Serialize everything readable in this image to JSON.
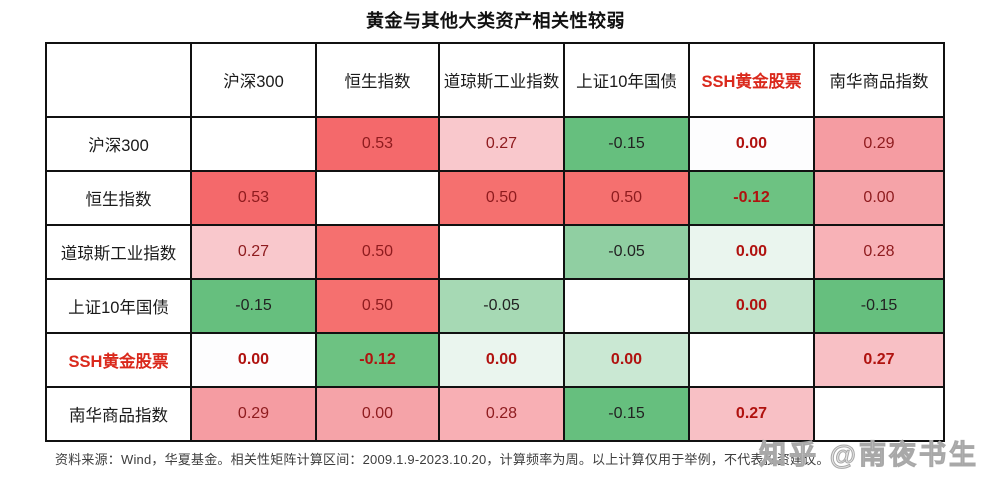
{
  "title": "黄金与其他大类资产相关性较弱",
  "source_note": "资料来源：Wind，华夏基金。相关性矩阵计算区间：2009.1.9-2023.10.20，计算频率为周。以上计算仅用于举例，不代表投资建议。",
  "watermark": "知乎 @南夜书生",
  "colors": {
    "border": "#111111",
    "header_highlight_red": "#DA291C",
    "value_positive_text": "#8E1B1E",
    "value_negative_text": "#222222",
    "value_gold_bold_text": "#B0120F",
    "strong_red_bg": "#F4696B",
    "strong_green_bg": "#66BF7E"
  },
  "chart_data": {
    "type": "heatmap",
    "title": "黄金与其他大类资产相关性较弱",
    "categories": [
      "沪深300",
      "恒生指数",
      "道琼斯工业指数",
      "上证10年国债",
      "SSH黄金股票",
      "南华商品指数"
    ],
    "highlight_category": "SSH黄金股票",
    "matrix": [
      [
        null,
        0.53,
        0.27,
        -0.15,
        0.0,
        0.29
      ],
      [
        0.53,
        null,
        0.5,
        0.5,
        -0.12,
        0.0
      ],
      [
        0.27,
        0.5,
        null,
        -0.05,
        0.0,
        0.28
      ],
      [
        -0.15,
        0.5,
        -0.05,
        null,
        0.0,
        -0.15
      ],
      [
        0.0,
        -0.12,
        0.0,
        0.0,
        null,
        0.27
      ],
      [
        0.29,
        0.0,
        0.28,
        -0.15,
        0.27,
        null
      ]
    ],
    "color_scale": "red=positive correlation, green=negative correlation, white=zero",
    "legend_position": "none",
    "grid": true
  },
  "table": {
    "corner_label": "",
    "col_headers": [
      {
        "label": "沪深300",
        "highlight": false
      },
      {
        "label": "恒生指数",
        "highlight": false
      },
      {
        "label": "道琼斯工业指数",
        "highlight": false
      },
      {
        "label": "上证10年国债",
        "highlight": false
      },
      {
        "label": "SSH黄金股票",
        "highlight": true
      },
      {
        "label": "南华商品指数",
        "highlight": false
      }
    ],
    "rows": [
      {
        "label": "沪深300",
        "highlight": false,
        "cells": [
          {
            "text": "",
            "bg": "#FFFFFF",
            "color": "#222222",
            "bold": false
          },
          {
            "text": "0.53",
            "bg": "#F4696B",
            "color": "#8E1B1E",
            "bold": false
          },
          {
            "text": "0.27",
            "bg": "#F9C8CC",
            "color": "#8E1B1E",
            "bold": false
          },
          {
            "text": "-0.15",
            "bg": "#66BF7E",
            "color": "#222222",
            "bold": false
          },
          {
            "text": "0.00",
            "bg": "#FDFDFE",
            "color": "#B0120F",
            "bold": true
          },
          {
            "text": "0.29",
            "bg": "#F59CA2",
            "color": "#8E1B1E",
            "bold": false
          }
        ]
      },
      {
        "label": "恒生指数",
        "highlight": false,
        "cells": [
          {
            "text": "0.53",
            "bg": "#F4696B",
            "color": "#8E1B1E",
            "bold": false
          },
          {
            "text": "",
            "bg": "#FFFFFF",
            "color": "#222222",
            "bold": false
          },
          {
            "text": "0.50",
            "bg": "#F5706F",
            "color": "#8E1B1E",
            "bold": false
          },
          {
            "text": "0.50",
            "bg": "#F5706F",
            "color": "#8E1B1E",
            "bold": false
          },
          {
            "text": "-0.12",
            "bg": "#6DC282",
            "color": "#B0120F",
            "bold": true
          },
          {
            "text": "0.00",
            "bg": "#F5A3A8",
            "color": "#8E1B1E",
            "bold": false
          }
        ]
      },
      {
        "label": "道琼斯工业指数",
        "highlight": false,
        "cells": [
          {
            "text": "0.27",
            "bg": "#F9C8CC",
            "color": "#8E1B1E",
            "bold": false
          },
          {
            "text": "0.50",
            "bg": "#F5706F",
            "color": "#8E1B1E",
            "bold": false
          },
          {
            "text": "",
            "bg": "#FFFFFF",
            "color": "#222222",
            "bold": false
          },
          {
            "text": "-0.05",
            "bg": "#90CFA2",
            "color": "#222222",
            "bold": false
          },
          {
            "text": "0.00",
            "bg": "#EAF5EE",
            "color": "#B0120F",
            "bold": true
          },
          {
            "text": "0.28",
            "bg": "#F8B2B7",
            "color": "#8E1B1E",
            "bold": false
          }
        ]
      },
      {
        "label": "上证10年国债",
        "highlight": false,
        "cells": [
          {
            "text": "-0.15",
            "bg": "#66BF7E",
            "color": "#222222",
            "bold": false
          },
          {
            "text": "0.50",
            "bg": "#F5706F",
            "color": "#8E1B1E",
            "bold": false
          },
          {
            "text": "-0.05",
            "bg": "#A6D9B4",
            "color": "#222222",
            "bold": false
          },
          {
            "text": "",
            "bg": "#FFFFFF",
            "color": "#222222",
            "bold": false
          },
          {
            "text": "0.00",
            "bg": "#C2E4CC",
            "color": "#B0120F",
            "bold": true
          },
          {
            "text": "-0.15",
            "bg": "#66BF7E",
            "color": "#222222",
            "bold": false
          }
        ]
      },
      {
        "label": "SSH黄金股票",
        "highlight": true,
        "cells": [
          {
            "text": "0.00",
            "bg": "#FDFDFE",
            "color": "#B0120F",
            "bold": true
          },
          {
            "text": "-0.12",
            "bg": "#6DC282",
            "color": "#B0120F",
            "bold": true
          },
          {
            "text": "0.00",
            "bg": "#EAF5EE",
            "color": "#B0120F",
            "bold": true
          },
          {
            "text": "0.00",
            "bg": "#CAE8D3",
            "color": "#B0120F",
            "bold": true
          },
          {
            "text": "",
            "bg": "#FFFFFF",
            "color": "#222222",
            "bold": false
          },
          {
            "text": "0.27",
            "bg": "#F8C0C5",
            "color": "#B0120F",
            "bold": true
          }
        ]
      },
      {
        "label": "南华商品指数",
        "highlight": false,
        "cells": [
          {
            "text": "0.29",
            "bg": "#F59CA2",
            "color": "#8E1B1E",
            "bold": false
          },
          {
            "text": "0.00",
            "bg": "#F5A3A8",
            "color": "#8E1B1E",
            "bold": false
          },
          {
            "text": "0.28",
            "bg": "#F8AFB4",
            "color": "#8E1B1E",
            "bold": false
          },
          {
            "text": "-0.15",
            "bg": "#66BF7E",
            "color": "#222222",
            "bold": false
          },
          {
            "text": "0.27",
            "bg": "#F8C0C5",
            "color": "#B0120F",
            "bold": true
          },
          {
            "text": "",
            "bg": "#FFFFFF",
            "color": "#222222",
            "bold": false
          }
        ]
      }
    ]
  }
}
